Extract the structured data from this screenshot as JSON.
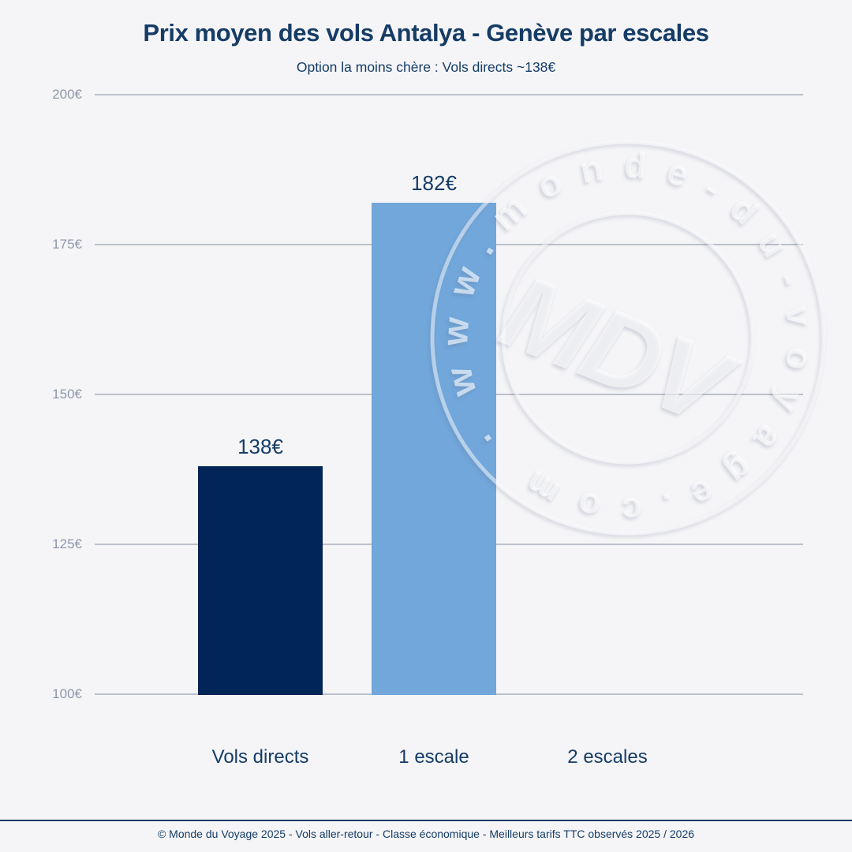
{
  "title": "Prix moyen des vols Antalya - Genève par escales",
  "subtitle": "Option la moins chère : Vols directs ~138€",
  "watermark": {
    "ring_text": "www.monde-du-voyage.com ·",
    "center_text": "MDV"
  },
  "footer": {
    "text": "© Monde du Voyage 2025 - Vols aller-retour - Classe économique - Meilleurs tarifs TTC observés 2025 / 2026"
  },
  "chart_data": {
    "type": "bar",
    "title": "Prix moyen des vols Antalya - Genève par escales",
    "subtitle": "Option la moins chère : Vols directs ~138€",
    "categories": [
      "Vols directs",
      "1 escale",
      "2 escales"
    ],
    "values": [
      138,
      182,
      null
    ],
    "value_labels": [
      "138€",
      "182€",
      null
    ],
    "bar_colors": [
      "#022557",
      "#71a7db",
      null
    ],
    "xlabel": "",
    "ylabel": "",
    "ylim": [
      100,
      200
    ],
    "yticks": [
      100,
      125,
      150,
      175,
      200
    ],
    "ytick_labels": [
      "100€",
      "125€",
      "150€",
      "175€",
      "200€"
    ],
    "grid": true,
    "legend": false
  },
  "colors": {
    "background": "#f5f5f7",
    "text_navy": "#153c66",
    "bar_dark": "#022557",
    "bar_light": "#71a7db",
    "gridline": "#bcc0cb",
    "tick_text": "#8e96a9"
  }
}
